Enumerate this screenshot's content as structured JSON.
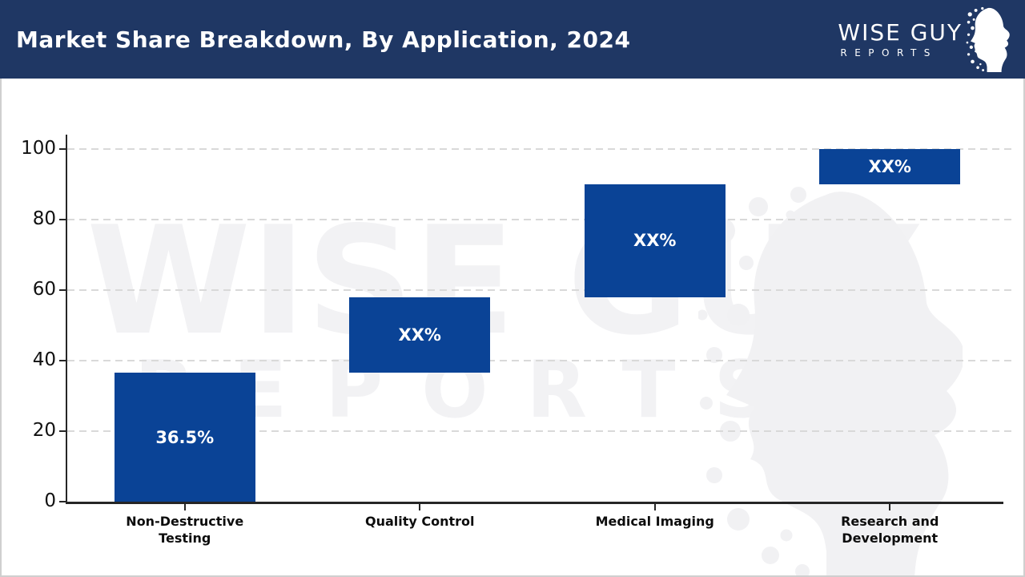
{
  "header": {
    "title": "Market Share Breakdown, By Application, 2024",
    "bg_color": "#1f3764",
    "logo": {
      "line1": "WISE GUY",
      "line2": "REPORTS"
    }
  },
  "watermark": {
    "line1": "WISE GUY",
    "line2": "REPORTS"
  },
  "chart_data": {
    "type": "bar",
    "variant": "waterfall",
    "title": "Market Share Breakdown, By Application, 2024",
    "categories": [
      "Non-Destructive Testing",
      "Quality Control",
      "Medical Imaging",
      "Research and Development"
    ],
    "category_label_lines": [
      [
        "Non-Destructive",
        "Testing"
      ],
      [
        "Quality Control"
      ],
      [
        "Medical Imaging"
      ],
      [
        "Research and",
        "Development"
      ]
    ],
    "segments": [
      {
        "category": "Non-Destructive Testing",
        "start": 0,
        "end": 36.5,
        "label": "36.5%"
      },
      {
        "category": "Quality Control",
        "start": 36.5,
        "end": 58,
        "label": "XX%"
      },
      {
        "category": "Medical Imaging",
        "start": 58,
        "end": 90,
        "label": "XX%"
      },
      {
        "category": "Research and Development",
        "start": 90,
        "end": 100,
        "label": "XX%"
      }
    ],
    "ylim": [
      0,
      100
    ],
    "yticks": [
      0,
      20,
      40,
      60,
      80,
      100
    ],
    "grid": {
      "horizontal": true,
      "style": "dashed",
      "color": "#d9d9d9"
    },
    "legend": "none",
    "bar_color": "#0a4396",
    "value_label_color": "#ffffff",
    "axis_color": "#262626",
    "tick_label_color": "#111111"
  }
}
